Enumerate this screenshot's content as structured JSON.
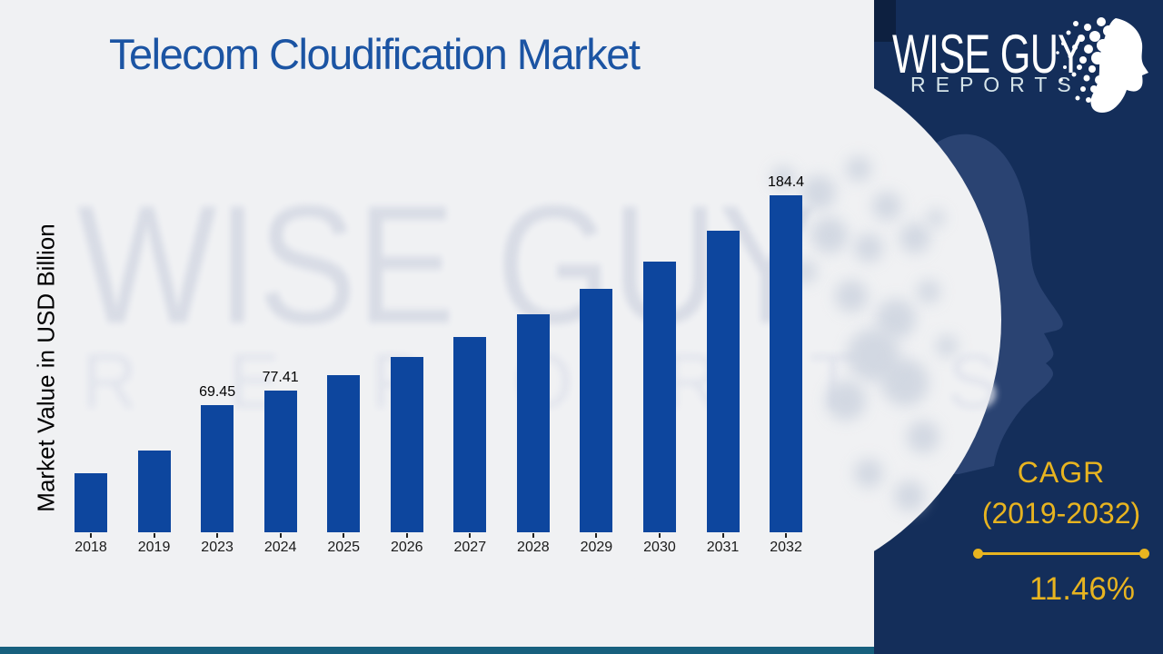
{
  "page": {
    "background": "#f0f1f3"
  },
  "title": {
    "text": "Telecom Cloudification Market",
    "color": "#1b54a3"
  },
  "watermark": {
    "line1": "WISE GUY",
    "line2": "REPORTS"
  },
  "brand_panel": {
    "logo": {
      "wordmark": "WISE GUY",
      "subline": "REPORTS",
      "face_icon": "dotted-head-profile"
    },
    "cagr": {
      "title": "CAGR",
      "range": "(2019-2032)",
      "value": "11.46%",
      "accent_color": "#e8b420"
    }
  },
  "chart_data": {
    "type": "bar",
    "title": "Telecom Cloudification Market",
    "xlabel": "",
    "ylabel": "Market Value in USD Billion",
    "categories": [
      "2018",
      "2019",
      "2023",
      "2024",
      "2025",
      "2026",
      "2027",
      "2028",
      "2029",
      "2030",
      "2031",
      "2032"
    ],
    "values": [
      32.3,
      45.0,
      69.45,
      77.41,
      86.3,
      96.2,
      107.2,
      119.5,
      133.2,
      148.4,
      165.4,
      184.4
    ],
    "data_labels": [
      "",
      "",
      "69.45",
      "77.41",
      "",
      "",
      "",
      "",
      "",
      "",
      "",
      "184.4"
    ],
    "ylim": [
      0,
      194
    ],
    "bar_color": "#0d469e",
    "grid": false,
    "legend": null,
    "x_axis_tick_color": "#222222"
  },
  "colors": {
    "background": "#f0f1f3",
    "panel_navy": "#142e5a",
    "panel_accent_dark": "#0d2040",
    "panel_face_blue": "#2a4372",
    "teal_footer": "#17607e",
    "gold_accent": "#e8b420",
    "bar_blue": "#0d469e",
    "title_blue": "#1b54a3"
  }
}
